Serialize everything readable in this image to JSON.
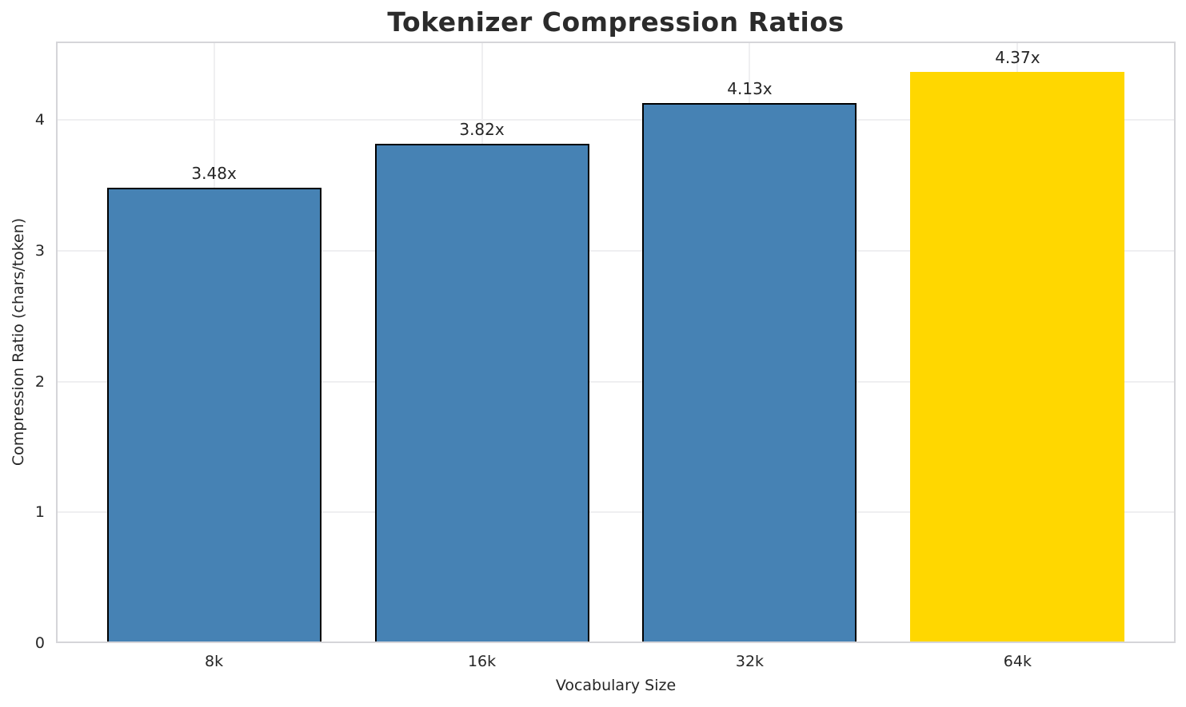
{
  "chart_data": {
    "type": "bar",
    "title": "Tokenizer Compression Ratios",
    "xlabel": "Vocabulary Size",
    "ylabel": "Compression Ratio (chars/token)",
    "categories": [
      "8k",
      "16k",
      "32k",
      "64k"
    ],
    "values": [
      3.48,
      3.82,
      4.13,
      4.37
    ],
    "bar_labels": [
      "3.48x",
      "3.82x",
      "4.13x",
      "4.37x"
    ],
    "bar_colors": [
      "#4682b4",
      "#4682b4",
      "#4682b4",
      "#ffd700"
    ],
    "bar_edge_colors": [
      "#000000",
      "#000000",
      "#000000",
      "none"
    ],
    "yticks": [
      0,
      1,
      2,
      3,
      4
    ],
    "ylim": [
      0,
      4.6
    ],
    "grid": true,
    "grid_axes": "both",
    "legend": null,
    "styles": {
      "grid_color": "#efeff1",
      "spine_color": "#d5d5d9",
      "text_color": "#262626",
      "title_color": "#2b2b2b",
      "background": "#ffffff"
    }
  }
}
